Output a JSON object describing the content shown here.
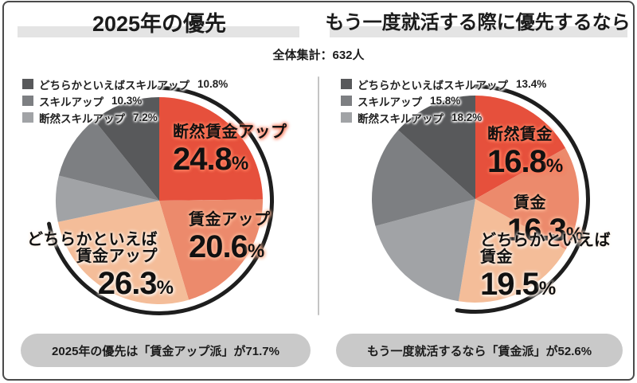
{
  "symbols": {
    "percent": "%"
  },
  "total_label": "全体集計：632人",
  "panels": [
    {
      "title": "2025年の優先",
      "caption": "2025年の優先は「賃金アップ派」が71.7%",
      "legend": [
        {
          "label": "どちらかといえばスキルアップ",
          "pct": "10.8%",
          "slice_index": 5
        },
        {
          "label": "スキルアップ",
          "pct": "10.3%",
          "slice_index": 4
        },
        {
          "label": "断然スキルアップ",
          "pct": "7.2%",
          "slice_index": 3
        }
      ],
      "callouts": [
        {
          "lines": [
            "断然賃金アップ",
            ""
          ],
          "value": "24.8"
        },
        {
          "lines": [
            "賃金アップ",
            ""
          ],
          "value": "20.6"
        },
        {
          "lines": [
            "どちらかといえば",
            "賃金アップ"
          ],
          "value": "26.3"
        }
      ]
    },
    {
      "title": "もう一度就活する際に優先するなら",
      "caption": "もう一度就活するなら「賃金派」が52.6%",
      "legend": [
        {
          "label": "どちらかといえばスキルアップ",
          "pct": "13.4%",
          "slice_index": 5
        },
        {
          "label": "スキルアップ",
          "pct": "15.8%",
          "slice_index": 4
        },
        {
          "label": "断然スキルアップ",
          "pct": "18.2%",
          "slice_index": 3
        }
      ],
      "callouts": [
        {
          "lines": [
            "断然賃金",
            ""
          ],
          "value": "16.8"
        },
        {
          "lines": [
            "賃金",
            ""
          ],
          "value": "16.3"
        },
        {
          "lines": [
            "どちらかといえば",
            "賃金"
          ],
          "value": "19.5"
        }
      ]
    }
  ],
  "chart_data": [
    {
      "type": "pie",
      "title": "2025年の優先",
      "start_angle_deg": 0,
      "direction": "clockwise",
      "total_n": 632,
      "slices": [
        {
          "label": "断然賃金アップ",
          "value": 24.8,
          "color": "#e6503c"
        },
        {
          "label": "賃金アップ",
          "value": 20.6,
          "color": "#ec8a6c"
        },
        {
          "label": "どちらかといえば賃金アップ",
          "value": 26.3,
          "color": "#f4bd99"
        },
        {
          "label": "断然スキルアップ",
          "value": 7.2,
          "color": "#a1a3a6"
        },
        {
          "label": "スキルアップ",
          "value": 10.3,
          "color": "#7d7f82"
        },
        {
          "label": "どちらかといえばスキルアップ",
          "value": 10.8,
          "color": "#58595b"
        }
      ],
      "emphasis_arc_percent": 71.7,
      "emphasis_arc_color": "#1e1e1e"
    },
    {
      "type": "pie",
      "title": "もう一度就活する際に優先するなら",
      "start_angle_deg": 0,
      "direction": "clockwise",
      "total_n": 632,
      "slices": [
        {
          "label": "断然賃金",
          "value": 16.8,
          "color": "#e6503c"
        },
        {
          "label": "賃金",
          "value": 16.3,
          "color": "#ec8a6c"
        },
        {
          "label": "どちらかといえば賃金",
          "value": 19.5,
          "color": "#f4bd99"
        },
        {
          "label": "断然スキルアップ",
          "value": 18.2,
          "color": "#a1a3a6"
        },
        {
          "label": "スキルアップ",
          "value": 15.8,
          "color": "#7d7f82"
        },
        {
          "label": "どちらかといえばスキルアップ",
          "value": 13.4,
          "color": "#58595b"
        }
      ],
      "emphasis_arc_percent": 52.6,
      "emphasis_arc_color": "#1e1e1e"
    }
  ]
}
